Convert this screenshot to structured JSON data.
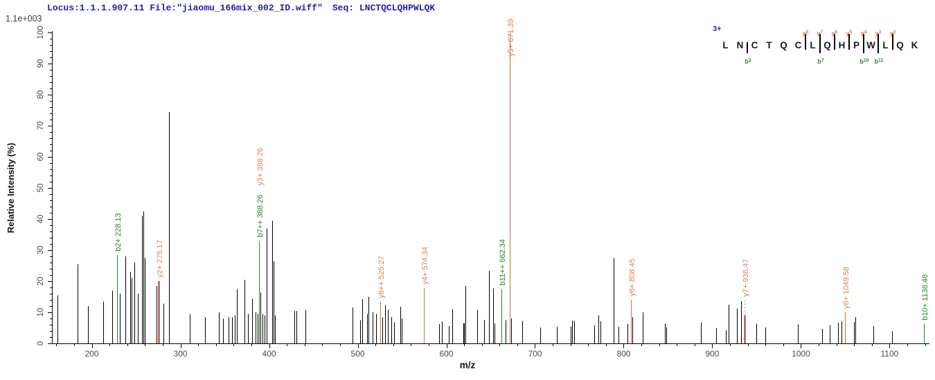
{
  "header": {
    "locus_file": "Locus:1.1.1.907.11 File:\"jiaomu_166mix_002_ID.wiff\"",
    "seq": "Seq: LNCTQCLQHPWLQK"
  },
  "scale_label": "1.1e+003",
  "colors": {
    "header_blue": "#2222A8",
    "charge_blue": "#2424C8",
    "b_ion_green": "#1F8A1F",
    "y_ion_label_orange": "#DD8155",
    "y_ion_line_orange": "#C96F33",
    "matched_dark_red": "#943A28",
    "peak_black": "#000000",
    "axis_black": "#000000",
    "tick_label_gray": "#4A4A4A"
  },
  "chart_data": {
    "type": "bar",
    "subtype": "centroided-ms2-spectrum",
    "xlabel": "m/z",
    "ylabel": "Relative Intensity (%)",
    "xlim": [
      155,
      1145
    ],
    "ylim": [
      0,
      100
    ],
    "x_tick_labels": [
      200,
      300,
      400,
      500,
      600,
      700,
      800,
      900,
      1000,
      1100
    ],
    "x_minor_step": 20,
    "y_tick_labels": [
      0,
      10,
      20,
      30,
      40,
      50,
      60,
      70,
      80,
      90,
      100
    ],
    "y_minor_step": 2,
    "grid": false,
    "legend": false,
    "peaks": [
      [
        161,
        15.5
      ],
      [
        184,
        25.5
      ],
      [
        196,
        12
      ],
      [
        213,
        13.5
      ],
      [
        223,
        17
      ],
      [
        231.9,
        16
      ],
      [
        237.8,
        28
      ],
      [
        243,
        23
      ],
      [
        245.1,
        21
      ],
      [
        248.2,
        26
      ],
      [
        251.6,
        16
      ],
      [
        256.6,
        41
      ],
      [
        258.4,
        42.5
      ],
      [
        259.8,
        27.5
      ],
      [
        273.3,
        18.5
      ],
      [
        280.6,
        12.8
      ],
      [
        286.8,
        74.5
      ],
      [
        310.4,
        9.5
      ],
      [
        328,
        8.5
      ],
      [
        343,
        10
      ],
      [
        348,
        8
      ],
      [
        354,
        8.5
      ],
      [
        358,
        8.5
      ],
      [
        361.6,
        9
      ],
      [
        363.8,
        17.5
      ],
      [
        372,
        20.5
      ],
      [
        376.5,
        9.5
      ],
      [
        380.7,
        14.3
      ],
      [
        385,
        10
      ],
      [
        387,
        9.5
      ],
      [
        390.3,
        16.3
      ],
      [
        392.5,
        9.5
      ],
      [
        394.5,
        9
      ],
      [
        397.6,
        37
      ],
      [
        403.8,
        39.5
      ],
      [
        405.1,
        26.5
      ],
      [
        406.5,
        9
      ],
      [
        428.8,
        10.4
      ],
      [
        430.7,
        10.4
      ],
      [
        441,
        10.8
      ],
      [
        494.4,
        11.6
      ],
      [
        502.8,
        7.5
      ],
      [
        504.9,
        14.2
      ],
      [
        510.5,
        9.5
      ],
      [
        512,
        15
      ],
      [
        516.4,
        10
      ],
      [
        521,
        9.5
      ],
      [
        528,
        8.3
      ],
      [
        530.9,
        12.3
      ],
      [
        534,
        10.8
      ],
      [
        537.8,
        8.4
      ],
      [
        541,
        6.8
      ],
      [
        548.4,
        11.8
      ],
      [
        549.8,
        8
      ],
      [
        591.8,
        6.2
      ],
      [
        595,
        7.1
      ],
      [
        603,
        5.6
      ],
      [
        606.4,
        11
      ],
      [
        619.5,
        6.5
      ],
      [
        620.3,
        6.5
      ],
      [
        621.5,
        18.4
      ],
      [
        634.7,
        10.8
      ],
      [
        642.6,
        7.6
      ],
      [
        648,
        23.3
      ],
      [
        653,
        17.7
      ],
      [
        654.3,
        6.5
      ],
      [
        666.8,
        7.4
      ],
      [
        672.8,
        8
      ],
      [
        685.5,
        7.2
      ],
      [
        706,
        5.1
      ],
      [
        724.4,
        5.3
      ],
      [
        740.5,
        5.5
      ],
      [
        742,
        7.3
      ],
      [
        744,
        7.2
      ],
      [
        767,
        5.8
      ],
      [
        771.8,
        9
      ],
      [
        773.9,
        7.1
      ],
      [
        788.9,
        27.5
      ],
      [
        793.9,
        5.3
      ],
      [
        804,
        6.3
      ],
      [
        809.5,
        8.5
      ],
      [
        821.8,
        10
      ],
      [
        846.5,
        6.3
      ],
      [
        848.4,
        5.2
      ],
      [
        887,
        6.8
      ],
      [
        904.3,
        4.9
      ],
      [
        915.3,
        4.2
      ],
      [
        918.5,
        12.4
      ],
      [
        927.7,
        11.2
      ],
      [
        932.8,
        13.6
      ],
      [
        950,
        6.3
      ],
      [
        960,
        5.1
      ],
      [
        996.3,
        6.1
      ],
      [
        1023.9,
        4.7
      ],
      [
        1032.3,
        5.9
      ],
      [
        1041.5,
        6.7
      ],
      [
        1045.4,
        7.1
      ],
      [
        1059.8,
        6.9
      ],
      [
        1061.7,
        8.4
      ],
      [
        1081.6,
        5.6
      ],
      [
        1102.8,
        3.9
      ]
    ],
    "annotations": [
      {
        "label": "b2+ 228.13",
        "mz": 228.13,
        "intensity": 28.5,
        "series": "b"
      },
      {
        "label": "y2+ 275.17",
        "mz": 275.17,
        "intensity": 20,
        "series": "y",
        "dark": true
      },
      {
        "label": "b7++ 388.26",
        "mz": 388.26,
        "intensity": 33,
        "series": "b"
      },
      {
        "label": "y3+ 388.26",
        "mz": 388.26,
        "intensity": 33,
        "series": "y",
        "no_line": true,
        "offset": 75
      },
      {
        "label": "y8++ 525.27",
        "mz": 525.27,
        "intensity": 13.4,
        "series": "y"
      },
      {
        "label": "y4+ 574.34",
        "mz": 574.34,
        "intensity": 17.8,
        "series": "y"
      },
      {
        "label": "b11++ 662.34",
        "mz": 662.34,
        "intensity": 17.5,
        "series": "b"
      },
      {
        "label": "y5+ 671.39",
        "mz": 671.39,
        "intensity": 100,
        "series": "y",
        "offset": -40
      },
      {
        "label": "y6+ 808.45",
        "mz": 808.45,
        "intensity": 14,
        "series": "y"
      },
      {
        "label": "y7+ 936.47",
        "mz": 936.47,
        "intensity": 9,
        "series": "y",
        "dark": true,
        "offset": 22,
        "leader": true
      },
      {
        "label": "y8+ 1049.58",
        "mz": 1049.58,
        "intensity": 10,
        "series": "y"
      },
      {
        "label": "b10+ 1138.48",
        "mz": 1138.48,
        "intensity": 6.3,
        "series": "b"
      }
    ]
  },
  "peptide": {
    "charge": "3+",
    "residues": [
      {
        "aa": "L"
      },
      {
        "aa": "N"
      },
      {
        "aa": "C",
        "b_tick": true,
        "b_label": "b2"
      },
      {
        "aa": "T"
      },
      {
        "aa": "Q"
      },
      {
        "aa": "C"
      },
      {
        "aa": "L",
        "y_tick": true,
        "y_label": "y8"
      },
      {
        "aa": "Q",
        "y_tick": true,
        "y_label": "y7",
        "b_tick": true,
        "b_label": "b7"
      },
      {
        "aa": "H",
        "y_tick": true,
        "y_label": "y6"
      },
      {
        "aa": "P",
        "y_tick": true,
        "y_label": "y5"
      },
      {
        "aa": "W",
        "y_tick": true,
        "y_label": "y4",
        "b_tick": true,
        "b_label": "b10"
      },
      {
        "aa": "L",
        "y_tick": true,
        "y_label": "y3",
        "b_tick": true,
        "b_label": "b11"
      },
      {
        "aa": "Q",
        "y_tick": true,
        "y_label": "y2"
      },
      {
        "aa": "K"
      }
    ]
  }
}
